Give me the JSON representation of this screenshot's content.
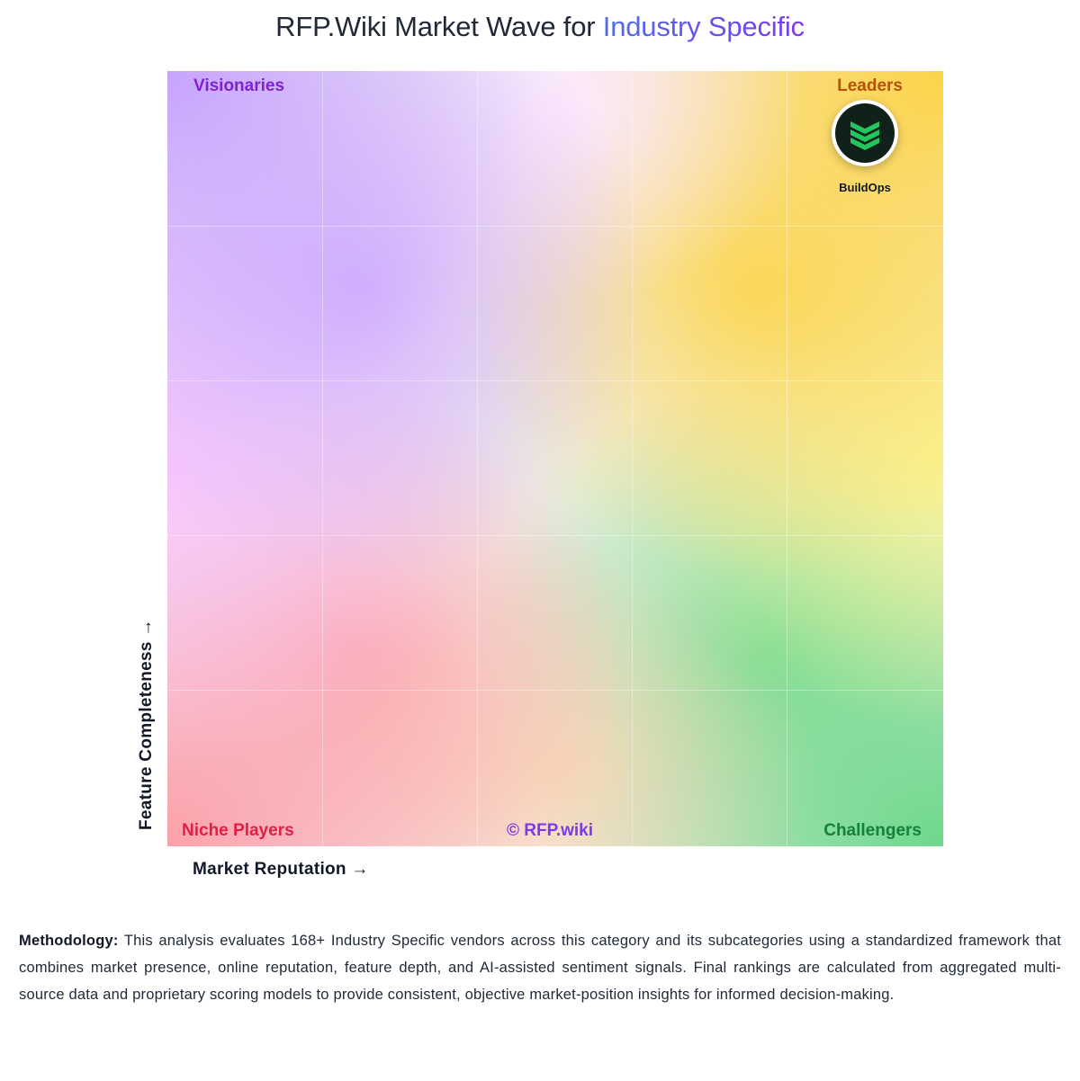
{
  "header": {
    "title_prefix": "RFP.Wiki Market Wave for",
    "title_highlight": "Industry Specific"
  },
  "chart": {
    "quadrants": {
      "top_left": "Visionaries",
      "top_right": "Leaders",
      "bottom_left": "Niche Players",
      "bottom_right": "Challengers"
    },
    "watermark": "© RFP.wiki",
    "x_axis_label": "Market Reputation →",
    "y_axis_label": "Feature Completeness →",
    "colors": {
      "visionaries": "#7e22ce",
      "leaders": "#b45309",
      "niche": "#e11d48",
      "challengers": "#15803d",
      "logo_green": "#22c55e",
      "logo_bg": "#0f2119"
    },
    "vendors": [
      {
        "name": "BuildOps",
        "icon": "buildops-chevron-stack-icon",
        "quadrant": "Leaders"
      }
    ]
  },
  "methodology": {
    "label": "Methodology:",
    "text": "This analysis evaluates 168+ Industry Specific vendors across this category and its subcategories using a standardized framework that combines market presence, online reputation, feature depth, and AI-assisted sentiment signals. Final rankings are calculated from aggregated multi-source data and proprietary scoring models to provide consistent, objective market-position insights for informed decision-making."
  }
}
